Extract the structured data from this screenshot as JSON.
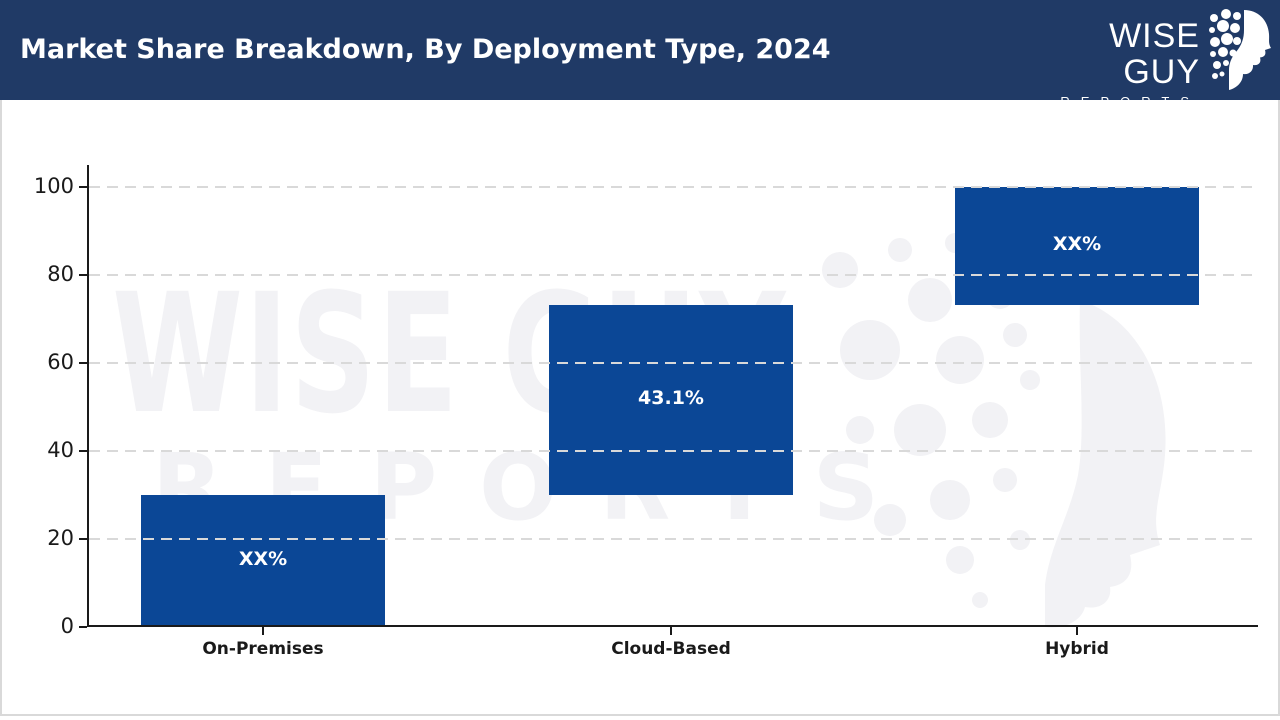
{
  "header": {
    "title": "Market Share Breakdown, By Deployment Type, 2024",
    "logo": {
      "line1": "WISE GUY",
      "line2": "REPORTS"
    }
  },
  "watermark": {
    "line1": "WISE GUY",
    "line2": "REPORTS"
  },
  "colors": {
    "header_bg": "#203A66",
    "bar": "#0B4796",
    "bar_label": "#FFFFFF",
    "axis": "#1A1A1A",
    "gridline": "#D9D9D9",
    "watermark": "#F2F2F5"
  },
  "chart_data": {
    "type": "bar",
    "subtype": "floating cumulative share segments",
    "title": "Market Share Breakdown, By Deployment Type, 2024",
    "categories": [
      "On-Premises",
      "Cloud-Based",
      "Hybrid"
    ],
    "bars": [
      {
        "category": "On-Premises",
        "start": 0,
        "end": 30,
        "label": "XX%"
      },
      {
        "category": "Cloud-Based",
        "start": 30,
        "end": 73.1,
        "label": "43.1%"
      },
      {
        "category": "Hybrid",
        "start": 73.1,
        "end": 100,
        "label": "XX%"
      }
    ],
    "yticks": [
      0,
      20,
      40,
      60,
      80,
      100
    ],
    "ylim": [
      0,
      105
    ],
    "xlabel": "",
    "ylabel": "",
    "grid": "horizontal-dashed",
    "legend": "none",
    "bar_color": "#0B4796"
  }
}
